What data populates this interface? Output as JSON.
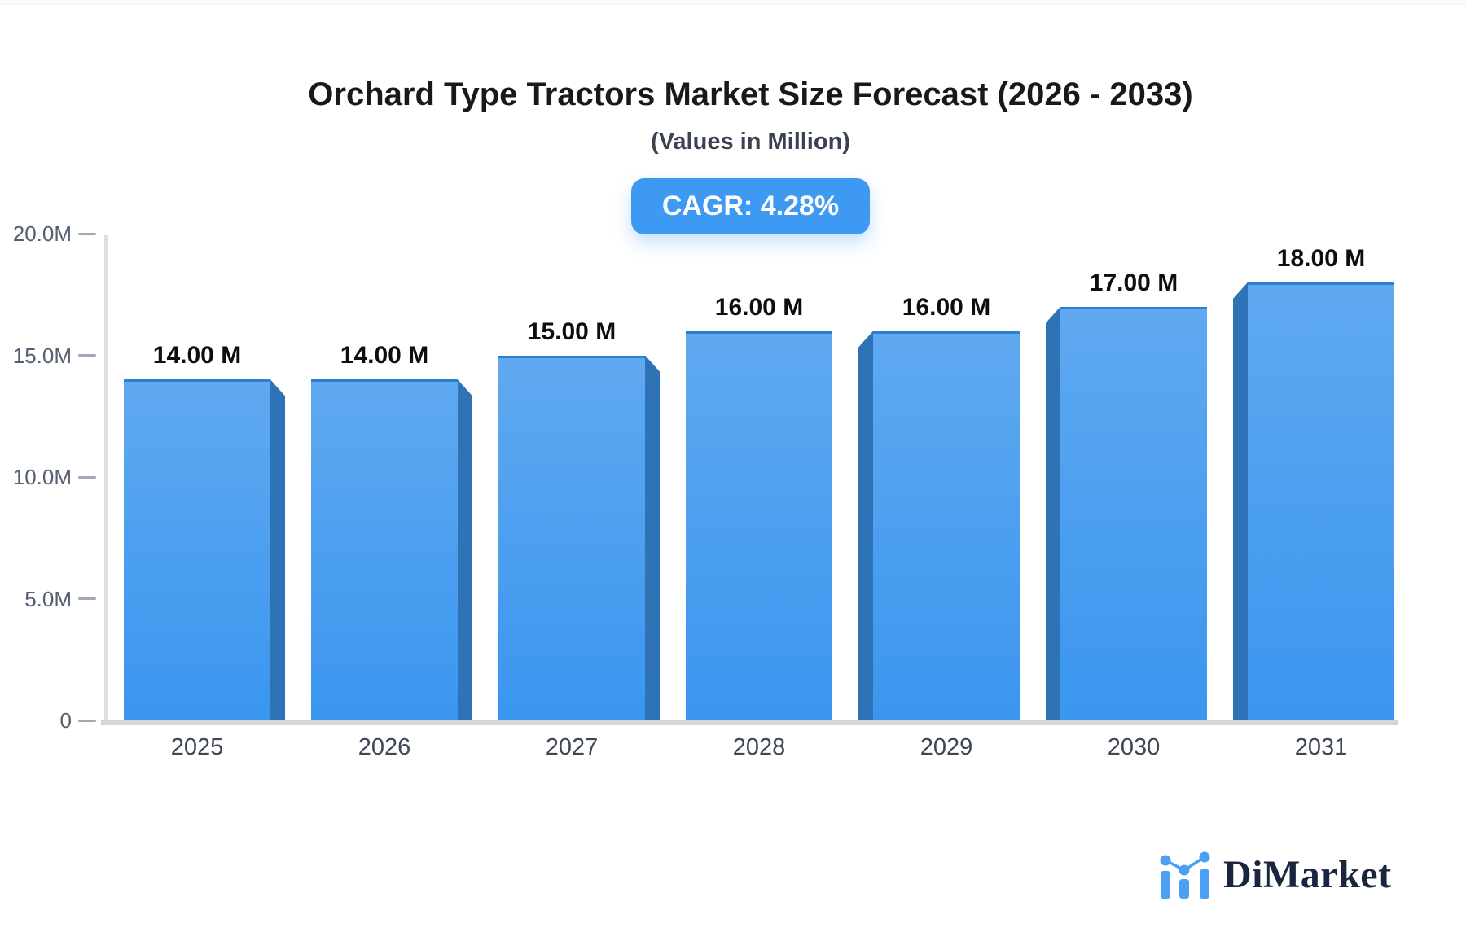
{
  "badge": {
    "label": "CAGR: 4.28%",
    "bg": "#3e99f2"
  },
  "brand": {
    "name": "DiMarket",
    "icon": "bar-chart-logo-icon",
    "icon_color": "#4ba0f4",
    "text_color": "#1a2540"
  },
  "chart_data": {
    "type": "bar",
    "title": "Orchard Type Tractors Market Size Forecast (2026 - 2033)",
    "subtitle": "(Values in Million)",
    "categories": [
      "2025",
      "2026",
      "2027",
      "2028",
      "2029",
      "2030",
      "2031"
    ],
    "values": [
      14,
      14,
      15,
      16,
      16,
      17,
      18
    ],
    "value_labels": [
      "14.00 M",
      "14.00 M",
      "15.00 M",
      "16.00 M",
      "16.00 M",
      "17.00 M",
      "18.00 M"
    ],
    "unit": "Million",
    "xlabel": "",
    "ylabel": "",
    "ylim": [
      0,
      20
    ],
    "y_axis": {
      "ticks": [
        {
          "label": "20.0M",
          "value": 20
        },
        {
          "label": "15.0M",
          "value": 15
        },
        {
          "label": "10.0M",
          "value": 10
        },
        {
          "label": "5.0M",
          "value": 5
        },
        {
          "label": "0",
          "value": 0
        }
      ]
    },
    "grid": false,
    "legend": false,
    "annotations": [
      "CAGR: 4.28%"
    ],
    "colors": {
      "bar_face_top": "#5fa9f0",
      "bar_face_bottom": "#3a96ef",
      "bar_top_edge": "#2f80cc",
      "bar_side_face": "#2e73b6",
      "axis_line": "#dcdfe3",
      "baseline": "#d3d5d9",
      "tick_text": "#556070",
      "title_text": "#17191d"
    }
  }
}
